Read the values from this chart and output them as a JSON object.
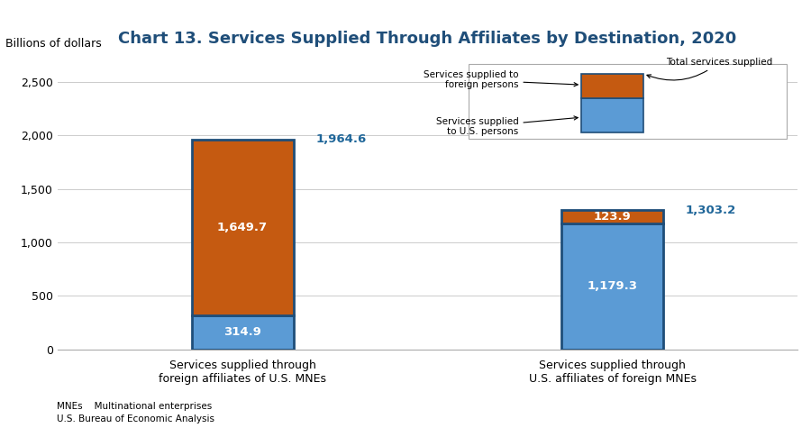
{
  "title": "Chart 13. Services Supplied Through Affiliates by Destination, 2020",
  "ylabel": "Billions of dollars",
  "categories": [
    "Services supplied through\nforeign affiliates of U.S. MNEs",
    "Services supplied through\nU.S. affiliates of foreign MNEs"
  ],
  "us_persons": [
    314.9,
    1179.3
  ],
  "foreign_persons": [
    1649.7,
    123.9
  ],
  "totals": [
    1964.6,
    1303.2
  ],
  "color_us": "#5B9BD5",
  "color_foreign": "#C55A11",
  "color_border": "#1F4E79",
  "color_total_label": "#1F6699",
  "ylim": [
    0,
    2700
  ],
  "yticks": [
    0,
    500,
    1000,
    1500,
    2000,
    2500
  ],
  "footnote1": "MNEs    Multinational enterprises",
  "footnote2": "U.S. Bureau of Economic Analysis",
  "title_color": "#1F4E79",
  "background_color": "#FFFFFF"
}
